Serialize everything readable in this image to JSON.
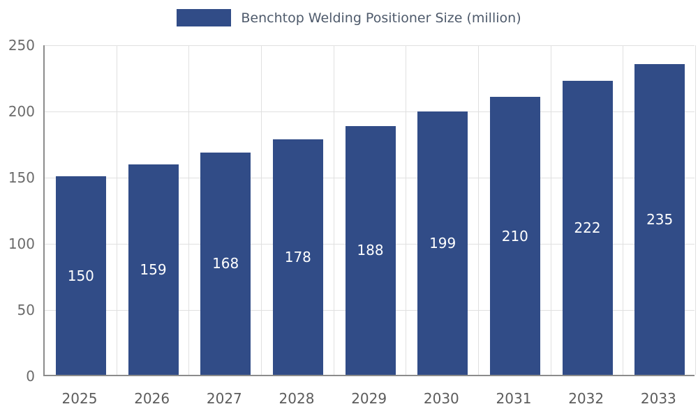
{
  "chart_data": {
    "type": "bar",
    "title": "Benchtop Welding Positioner Size (million)",
    "categories": [
      "2025",
      "2026",
      "2027",
      "2028",
      "2029",
      "2030",
      "2031",
      "2032",
      "2033"
    ],
    "values": [
      150,
      159,
      168,
      178,
      188,
      199,
      210,
      222,
      235
    ],
    "xlabel": "",
    "ylabel": "",
    "ylim": [
      0,
      250
    ],
    "yticks": [
      0,
      50,
      100,
      150,
      200,
      250
    ],
    "grid": true,
    "legend_position": "top",
    "bar_color": "#314C87",
    "bar_label_color": "#ffffff"
  }
}
